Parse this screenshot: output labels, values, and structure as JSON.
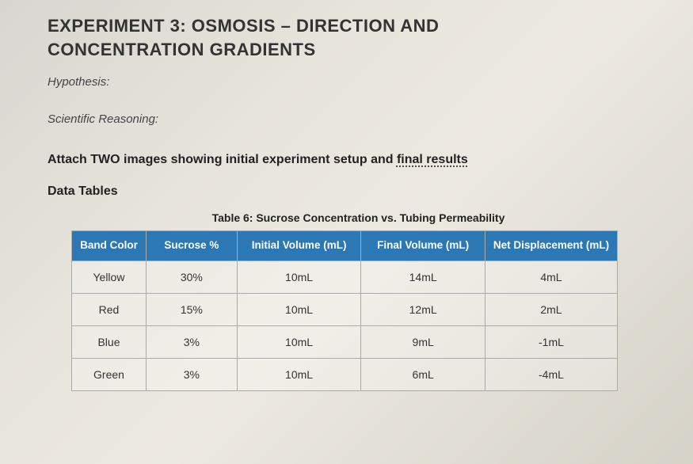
{
  "title_line1": "EXPERIMENT 3: OSMOSIS – DIRECTION AND",
  "title_line2": "CONCENTRATION GRADIENTS",
  "hypothesis_label": "Hypothesis:",
  "reasoning_label": "Scientific Reasoning:",
  "attach_prefix": "Attach TWO images showing initial experiment setup and ",
  "attach_final": "final results",
  "data_tables_label": "Data Tables",
  "table_caption": "Table 6: Sucrose Concentration vs. Tubing Permeability",
  "headers": {
    "band": "Band Color",
    "sucrose": "Sucrose %",
    "initial": "Initial Volume (mL)",
    "final": "Final Volume (mL)",
    "net": "Net Displacement (mL)"
  },
  "rows": [
    {
      "band": "Yellow",
      "sucrose": "30%",
      "initial": "10mL",
      "final": "14mL",
      "net": "4mL"
    },
    {
      "band": "Red",
      "sucrose": "15%",
      "initial": "10mL",
      "final": "12mL",
      "net": "2mL"
    },
    {
      "band": "Blue",
      "sucrose": "3%",
      "initial": "10mL",
      "final": "9mL",
      "net": "-1mL"
    },
    {
      "band": "Green",
      "sucrose": "3%",
      "initial": "10mL",
      "final": "6mL",
      "net": "-4mL"
    }
  ],
  "style": {
    "header_bg": "#2b78b5",
    "header_text_color": "#ffffff",
    "border_color": "#aaaaaa",
    "body_text_color": "#333333",
    "page_bg_from": "#d8d6d0",
    "page_bg_to": "#d5d2c8"
  }
}
